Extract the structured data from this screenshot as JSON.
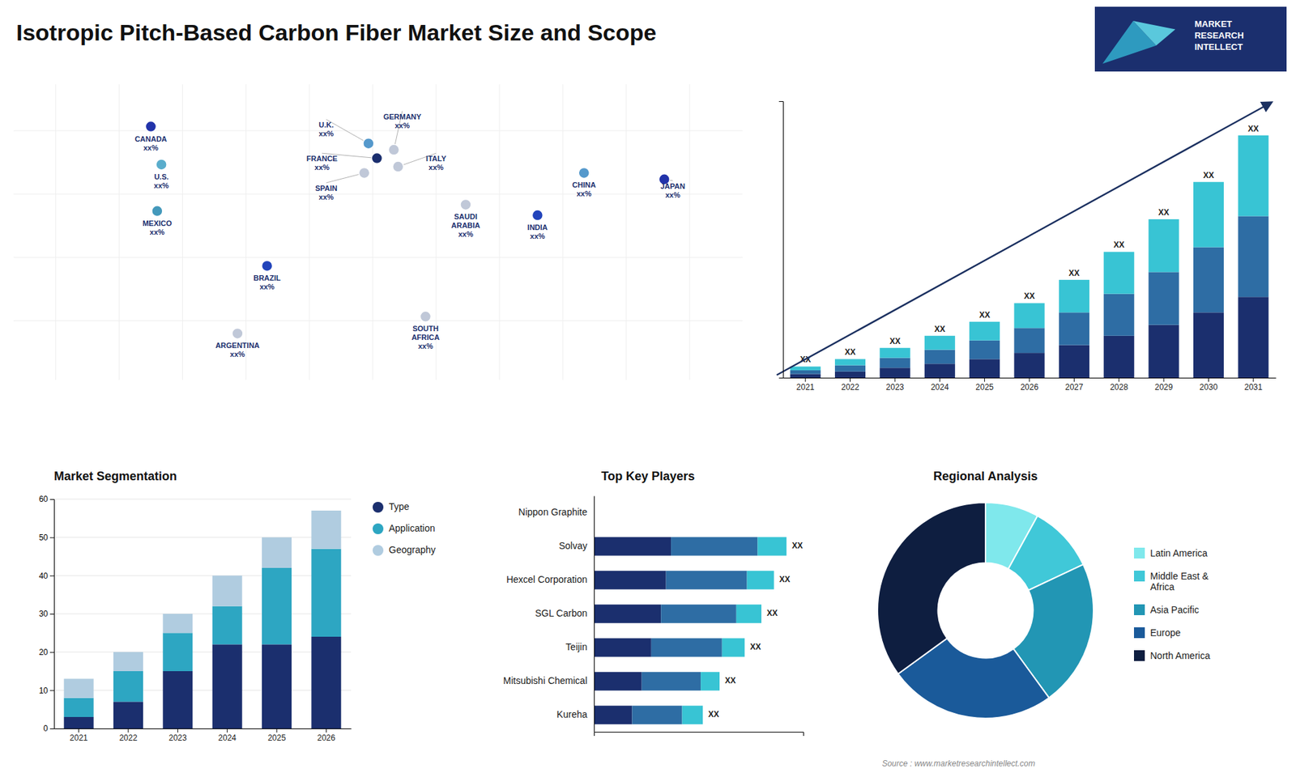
{
  "chart_data": [
    {
      "type": "map",
      "title": "Isotropic Pitch-Based Carbon Fiber Market Size and Scope",
      "categories": [
        "CANADA\nxx%",
        "U.S.\nxx%",
        "MEXICO\nxx%",
        "BRAZIL\nxx%",
        "ARGENTINA\nxx%",
        "U.K.\nxx%",
        "FRANCE\nxx%",
        "GERMANY\nxx%",
        "SPAIN\nxx%",
        "ITALY\nxx%",
        "SAUDI\nARABIA\nxx%",
        "SOUTH\nAFRICA\nxx%",
        "CHINA\nxx%",
        "INDIA\nxx%",
        "JAPAN\nxx%"
      ],
      "colors": [
        "#2233aa",
        "#5aadcc",
        "#4499bb",
        "#2244bb",
        "#c0c8d8",
        "#5599cc",
        "#1a2e6e",
        "#c0c8d8",
        "#c0c8d8",
        "#c0c8d8",
        "#c0c8d8",
        "#c0c8d8",
        "#5599cc",
        "#2244bb",
        "#2233aa"
      ],
      "annotations": [
        "Source : www.marketresearchintellect.com",
        "MARKET\nRESEARCH\nINTELLECT"
      ]
    },
    {
      "type": "bar",
      "stacked": true,
      "categories": [
        "2021",
        "2022",
        "2023",
        "2024",
        "2025",
        "2026",
        "2027",
        "2028",
        "2029",
        "2030",
        "2031"
      ],
      "series": [
        {
          "color": "#1b2f6e",
          "values": [
            1.2,
            2.0,
            3.2,
            4.5,
            6.0,
            8.0,
            10.5,
            13.5,
            17.0,
            21.0,
            26.0
          ]
        },
        {
          "color": "#2e6da4",
          "values": [
            1.2,
            2.0,
            3.2,
            4.5,
            6.0,
            8.0,
            10.5,
            13.5,
            17.0,
            21.0,
            26.0
          ]
        },
        {
          "color": "#38c4d4",
          "values": [
            1.2,
            2.0,
            3.2,
            4.5,
            6.0,
            8.0,
            10.5,
            13.5,
            17.0,
            21.0,
            26.0
          ],
          "value_labels": [
            "XX",
            "XX",
            "XX",
            "XX",
            "XX",
            "XX",
            "XX",
            "XX",
            "XX",
            "XX",
            "XX"
          ]
        }
      ],
      "ylim": [
        0,
        89
      ],
      "tick_labels": "x"
    },
    {
      "type": "bar",
      "title": "Market Segmentation",
      "stacked": true,
      "categories": [
        "2021",
        "2022",
        "2023",
        "2024",
        "2025",
        "2026"
      ],
      "series": [
        {
          "name": "Type",
          "color": "#1b2f6e",
          "values": [
            3,
            7,
            15,
            22,
            22,
            24
          ]
        },
        {
          "name": "Application",
          "color": "#2da6c2",
          "values": [
            5,
            8,
            10,
            10,
            20,
            23
          ]
        },
        {
          "name": "Geography",
          "color": "#b0cce0",
          "values": [
            5,
            5,
            5,
            8,
            8,
            10
          ]
        }
      ],
      "ylim": [
        0,
        60
      ],
      "yticks": [
        0,
        10,
        20,
        30,
        40,
        50,
        60
      ],
      "grid": true,
      "legend": "right"
    },
    {
      "type": "bar",
      "title": "Top Key Players",
      "orientation": "horizontal",
      "stacked": true,
      "categories": [
        "Nippon Graphite",
        "Solvay",
        "Hexcel Corporation",
        "SGL Carbon",
        "Teijin",
        "Mitsubishi Chemical",
        "Kureha"
      ],
      "series": [
        {
          "color": "#1b2f6e",
          "values": [
            null,
            0.184,
            0.172,
            0.16,
            0.1368,
            0.114,
            0.091
          ]
        },
        {
          "color": "#2e6da4",
          "values": [
            null,
            0.207,
            0.1935,
            0.18,
            0.1692,
            0.141,
            0.1196
          ]
        },
        {
          "color": "#38c4d4",
          "values": [
            null,
            0.069,
            0.0645,
            0.06,
            0.054,
            0.045,
            0.0494
          ],
          "value_labels": [
            null,
            "XX",
            "XX",
            "XX",
            "XX",
            "XX",
            "XX"
          ]
        }
      ],
      "xlim": [
        0,
        0.5
      ],
      "tick_labels": "y"
    },
    {
      "type": "pie",
      "title": "Regional Analysis",
      "categories": [
        "Latin America",
        "Middle East &\nAfrica",
        "Asia Pacific",
        "Europe",
        "North America"
      ],
      "values": [
        8,
        10,
        22,
        25,
        35
      ],
      "colors": [
        "#7fe8ec",
        "#40c8d8",
        "#2296b4",
        "#1a5a9a",
        "#0e1e40"
      ],
      "legend": "right"
    }
  ]
}
